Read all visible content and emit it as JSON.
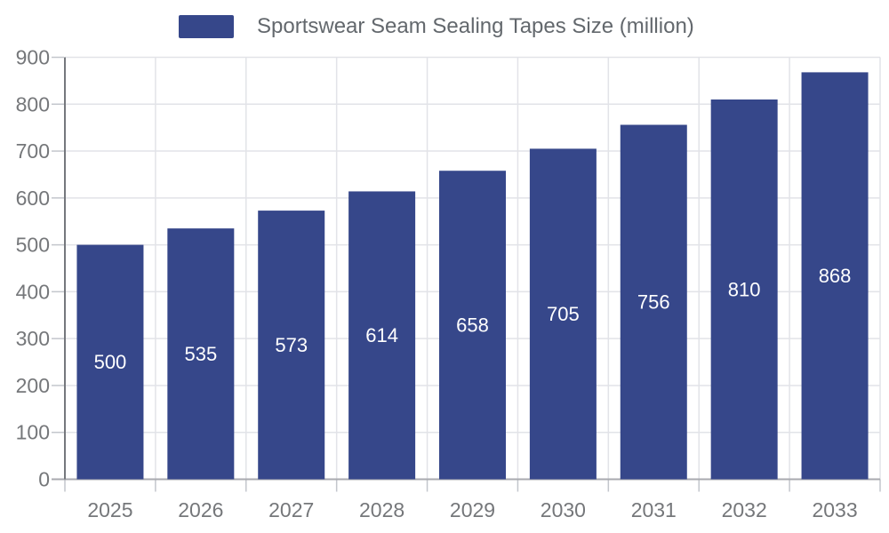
{
  "chart_data": {
    "type": "bar",
    "legend": {
      "label": "Sportswear Seam Sealing Tapes Size (million)",
      "position": "top"
    },
    "categories": [
      "2025",
      "2026",
      "2027",
      "2028",
      "2029",
      "2030",
      "2031",
      "2032",
      "2033"
    ],
    "values": [
      500,
      535,
      573,
      614,
      658,
      705,
      756,
      810,
      868
    ],
    "xlabel": "",
    "ylabel": "",
    "ylim": [
      0,
      900
    ],
    "ytick_step": 100,
    "grid": true,
    "value_labels_inside_bars": true,
    "colors": {
      "bar": "#36478A",
      "value_label": "#FFFFFF",
      "axis_text": "#75777A",
      "legend_text": "#63686D",
      "grid": "#E2E3E8",
      "tick": "#C3C6CC",
      "axis_line_left": "#75787D",
      "axis_line_bottom": "#A8AAAF"
    }
  }
}
